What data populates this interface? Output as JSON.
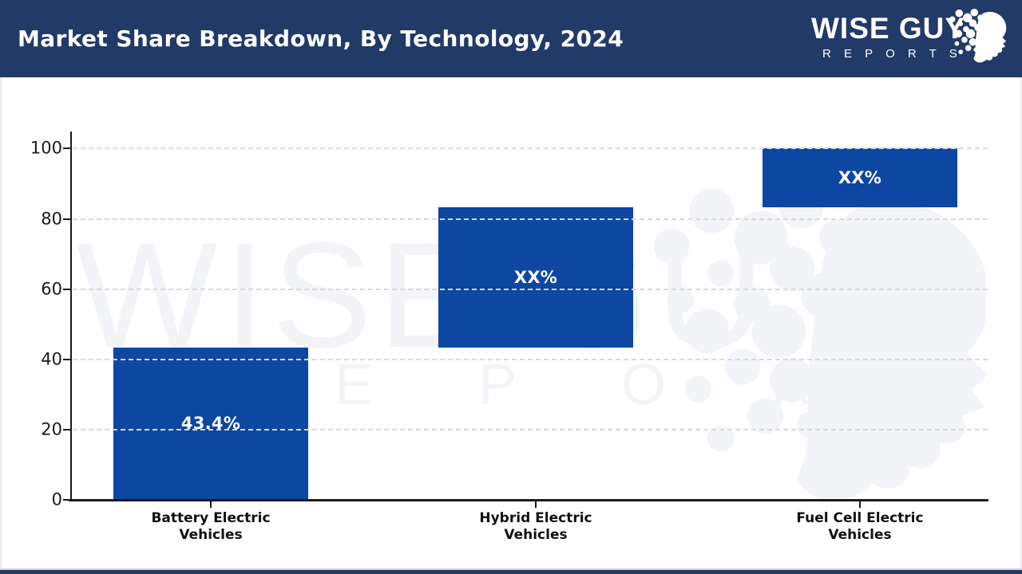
{
  "header": {
    "title": "Market Share Breakdown, By Technology, 2024",
    "logo": {
      "brand_line1": "WISE GUY",
      "brand_line2": "R E P O R T S"
    }
  },
  "watermark": {
    "line1": "WISE GUY",
    "line2": "R E P O R T S"
  },
  "chart_data": {
    "type": "bar",
    "variant": "waterfall",
    "title": "Market Share Breakdown, By Technology, 2024",
    "categories": [
      "Battery Electric Vehicles",
      "Hybrid Electric Vehicles",
      "Fuel Cell Electric Vehicles"
    ],
    "category_lines": [
      [
        "Battery Electric",
        "Vehicles"
      ],
      [
        "Hybrid Electric",
        "Vehicles"
      ],
      [
        "Fuel Cell Electric",
        "Vehicles"
      ]
    ],
    "bars": [
      {
        "category": "Battery Electric Vehicles",
        "segment_start": 0,
        "segment_end": 43.4,
        "value_label": "43.4%"
      },
      {
        "category": "Hybrid Electric Vehicles",
        "segment_start": 43.4,
        "segment_end": 83.3,
        "value_label": "XX%"
      },
      {
        "category": "Fuel Cell Electric Vehicles",
        "segment_start": 83.3,
        "segment_end": 100,
        "value_label": "XX%"
      }
    ],
    "ylim": [
      0,
      100
    ],
    "yticks": [
      0,
      20,
      40,
      60,
      80,
      100
    ],
    "xlabel": "",
    "ylabel": "",
    "grid": "horizontal dashed gridlines drawn over bars",
    "legend": "none",
    "bar_color": "#0d47a1",
    "value_label_color": "#ffffff"
  },
  "colors": {
    "header_bg": "#223a68",
    "footer_bg": "#223a68",
    "page_bg": "#ffffff",
    "axis": "#1a1a1a",
    "gridline": "#d9d9d9",
    "watermark": "#f2f4f7"
  }
}
